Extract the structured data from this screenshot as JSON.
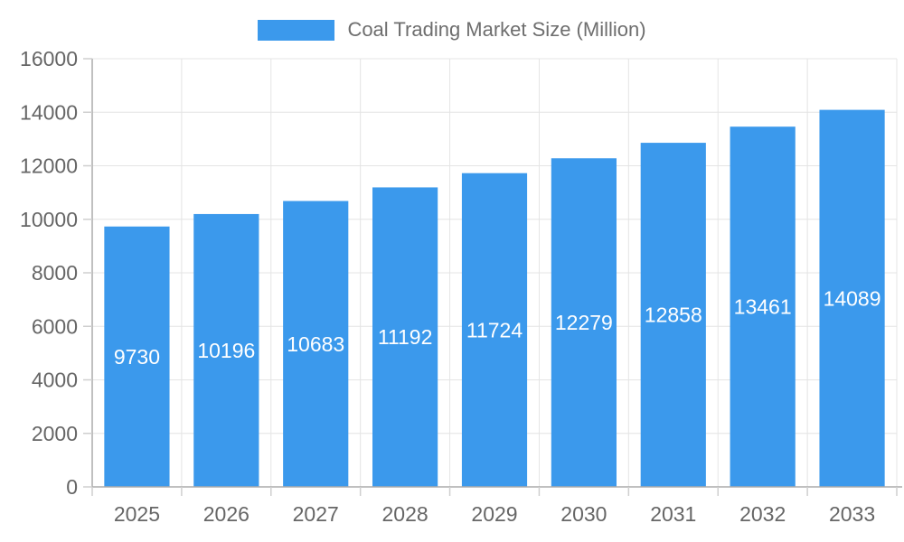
{
  "chart_data": {
    "type": "bar",
    "title": "Coal Trading Market Size (Million)",
    "xlabel": "",
    "ylabel": "",
    "categories": [
      "2025",
      "2026",
      "2027",
      "2028",
      "2029",
      "2030",
      "2031",
      "2032",
      "2033"
    ],
    "values": [
      9730,
      10196,
      10683,
      11192,
      11724,
      12279,
      12858,
      13461,
      14089
    ],
    "ylim": [
      0,
      16000
    ],
    "y_ticks": [
      0,
      2000,
      4000,
      6000,
      8000,
      10000,
      12000,
      14000,
      16000
    ],
    "legend_position": "top",
    "grid": true,
    "bar_color": "#3B99EC",
    "value_label_color": "#FFFFFF",
    "axis_text_color": "#666666",
    "grid_color": "#E4E4E4",
    "axis_line_color": "#ABABAB",
    "tick_color": "#CFCFCF"
  }
}
